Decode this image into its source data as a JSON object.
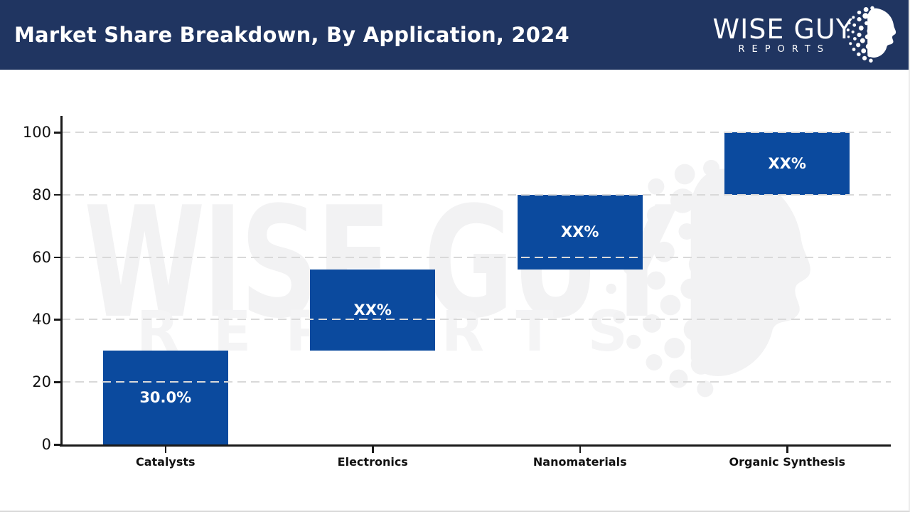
{
  "header": {
    "title": "Market Share Breakdown, By Application, 2024",
    "bg_color": "#203561",
    "logo": {
      "line1": "WISE GUY",
      "line2": "REPORTS",
      "head_icon": "head-dots-icon"
    }
  },
  "watermark": {
    "line1": "WISE GUY",
    "line2": "REPORTS",
    "head_icon": "head-dots-icon"
  },
  "chart_data": {
    "type": "bar",
    "subtype": "waterfall",
    "title": "Market Share Breakdown, By Application, 2024",
    "categories": [
      "Catalysts",
      "Electronics",
      "Nanomaterials",
      "Organic Synthesis"
    ],
    "segments": [
      {
        "category": "Catalysts",
        "start": 0,
        "end": 30,
        "label": "30.0%"
      },
      {
        "category": "Electronics",
        "start": 30,
        "end": 56,
        "label": "XX%"
      },
      {
        "category": "Nanomaterials",
        "start": 56,
        "end": 80,
        "label": "XX%"
      },
      {
        "category": "Organic Synthesis",
        "start": 80,
        "end": 100,
        "label": "XX%"
      }
    ],
    "yticks": [
      0,
      20,
      40,
      60,
      80,
      100
    ],
    "ylim": [
      0,
      105
    ],
    "xlabel": "",
    "ylabel": "",
    "grid": "horizontal-dashed",
    "legend": "none",
    "colors": {
      "bar": "#0b4a9e",
      "bar_label": "#ffffff",
      "grid": "#d9d9d9",
      "axis": "#1a1a1a",
      "tick_label": "#111111"
    }
  }
}
